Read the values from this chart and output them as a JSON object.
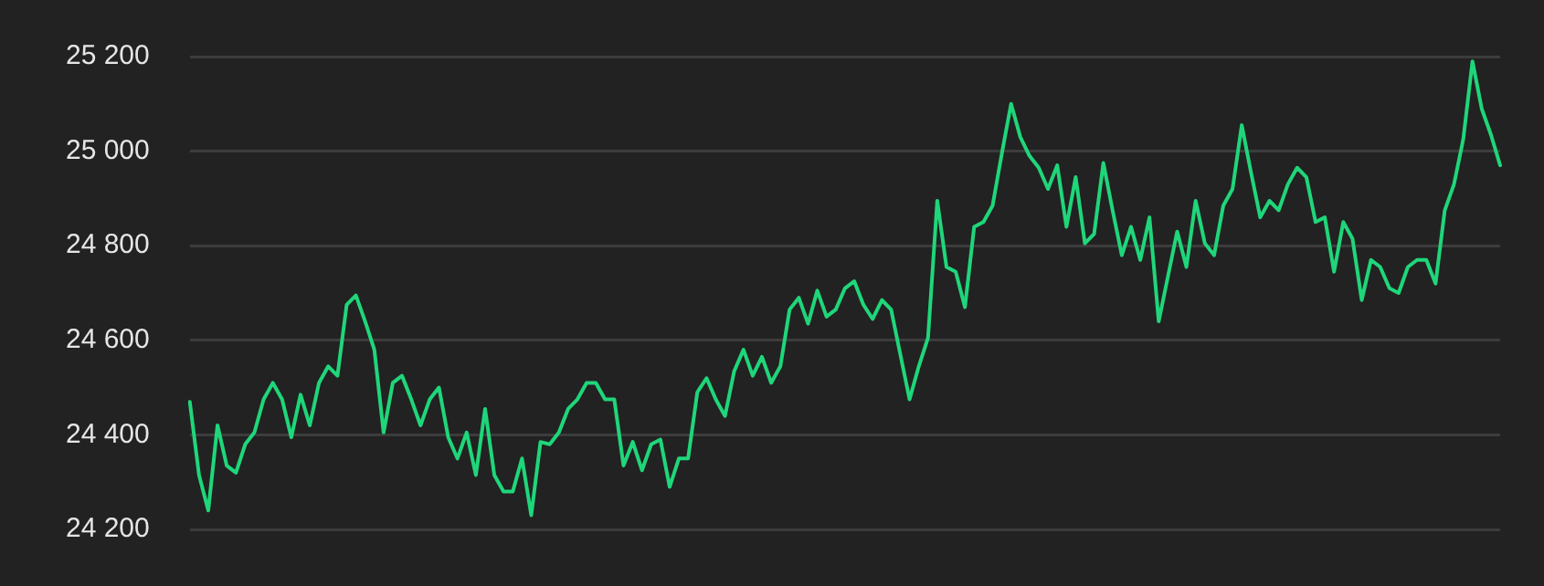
{
  "chart_data": {
    "type": "line",
    "categories": [
      null,
      null,
      null,
      null,
      null,
      null,
      null,
      null,
      null,
      null,
      null,
      null,
      null,
      null,
      null,
      null,
      null,
      null,
      null,
      null,
      null,
      null,
      null,
      null,
      null,
      null,
      null,
      null,
      null,
      null,
      null,
      null,
      null,
      null,
      null,
      null,
      null,
      null,
      null,
      null,
      null,
      null,
      null,
      null,
      null,
      null,
      null,
      null,
      null,
      null,
      null,
      null,
      null,
      null,
      null,
      null,
      null,
      null,
      null,
      null,
      null,
      null,
      null,
      null,
      null,
      null,
      null,
      null,
      null,
      null,
      null,
      null,
      null,
      null,
      null,
      null,
      null,
      null,
      null,
      null,
      null,
      null,
      null,
      null,
      null,
      null,
      null,
      null,
      null,
      null,
      null,
      null,
      null,
      null,
      null,
      null,
      null,
      null,
      null,
      null,
      null,
      null,
      null,
      null,
      null,
      null,
      null,
      null,
      null,
      null,
      null,
      null,
      null,
      null,
      null,
      null,
      null,
      null,
      null,
      null,
      null,
      null,
      null,
      null,
      null,
      null,
      null,
      null,
      null,
      null,
      null,
      null,
      null,
      null,
      null,
      null,
      null,
      null,
      null,
      null,
      null,
      null,
      null
    ],
    "series": [
      {
        "color": "#1fd67a",
        "values": [
          24470,
          24315,
          24240,
          24420,
          24335,
          24320,
          24380,
          24405,
          24475,
          24510,
          24475,
          24395,
          24485,
          24420,
          24510,
          24545,
          24525,
          24675,
          24695,
          24640,
          24580,
          24405,
          24510,
          24525,
          24475,
          24420,
          24475,
          24500,
          24395,
          24350,
          24405,
          24315,
          24455,
          24315,
          24280,
          24280,
          24350,
          24230,
          24385,
          24380,
          24405,
          24455,
          24475,
          24510,
          24510,
          24475,
          24475,
          24335,
          24385,
          24325,
          24380,
          24390,
          24290,
          24350,
          24350,
          24490,
          24520,
          24475,
          24440,
          24535,
          24580,
          24525,
          24565,
          24510,
          24545,
          24665,
          24690,
          24635,
          24705,
          24650,
          24665,
          24710,
          24725,
          24675,
          24645,
          24685,
          24665,
          24570,
          24475,
          24545,
          24605,
          24895,
          24755,
          24745,
          24670,
          24840,
          24850,
          24885,
          24995,
          25100,
          25030,
          24990,
          24965,
          24920,
          24970,
          24840,
          24945,
          24805,
          24825,
          24975,
          24875,
          24780,
          24840,
          24770,
          24860,
          24640,
          24735,
          24830,
          24755,
          24895,
          24805,
          24780,
          24885,
          24920,
          25055,
          24955,
          24860,
          24895,
          24875,
          24930,
          24965,
          24945,
          24850,
          24860,
          24745,
          24850,
          24815,
          24685,
          24770,
          24755,
          24710,
          24700,
          24755,
          24770,
          24770,
          24720,
          24875,
          24930,
          25025,
          25190,
          25090,
          25035,
          24970
        ]
      }
    ],
    "ylim": [
      24200,
      25200
    ],
    "yticks": [
      {
        "value": 24200,
        "label": "24 200"
      },
      {
        "value": 24400,
        "label": "24 400"
      },
      {
        "value": 24600,
        "label": "24 600"
      },
      {
        "value": 24800,
        "label": "24 800"
      },
      {
        "value": 25000,
        "label": "25 000"
      },
      {
        "value": 25200,
        "label": "25 200"
      }
    ],
    "grid": "y",
    "legend": false,
    "tick_labels": "y",
    "marker": "none",
    "line_style": "solid"
  }
}
